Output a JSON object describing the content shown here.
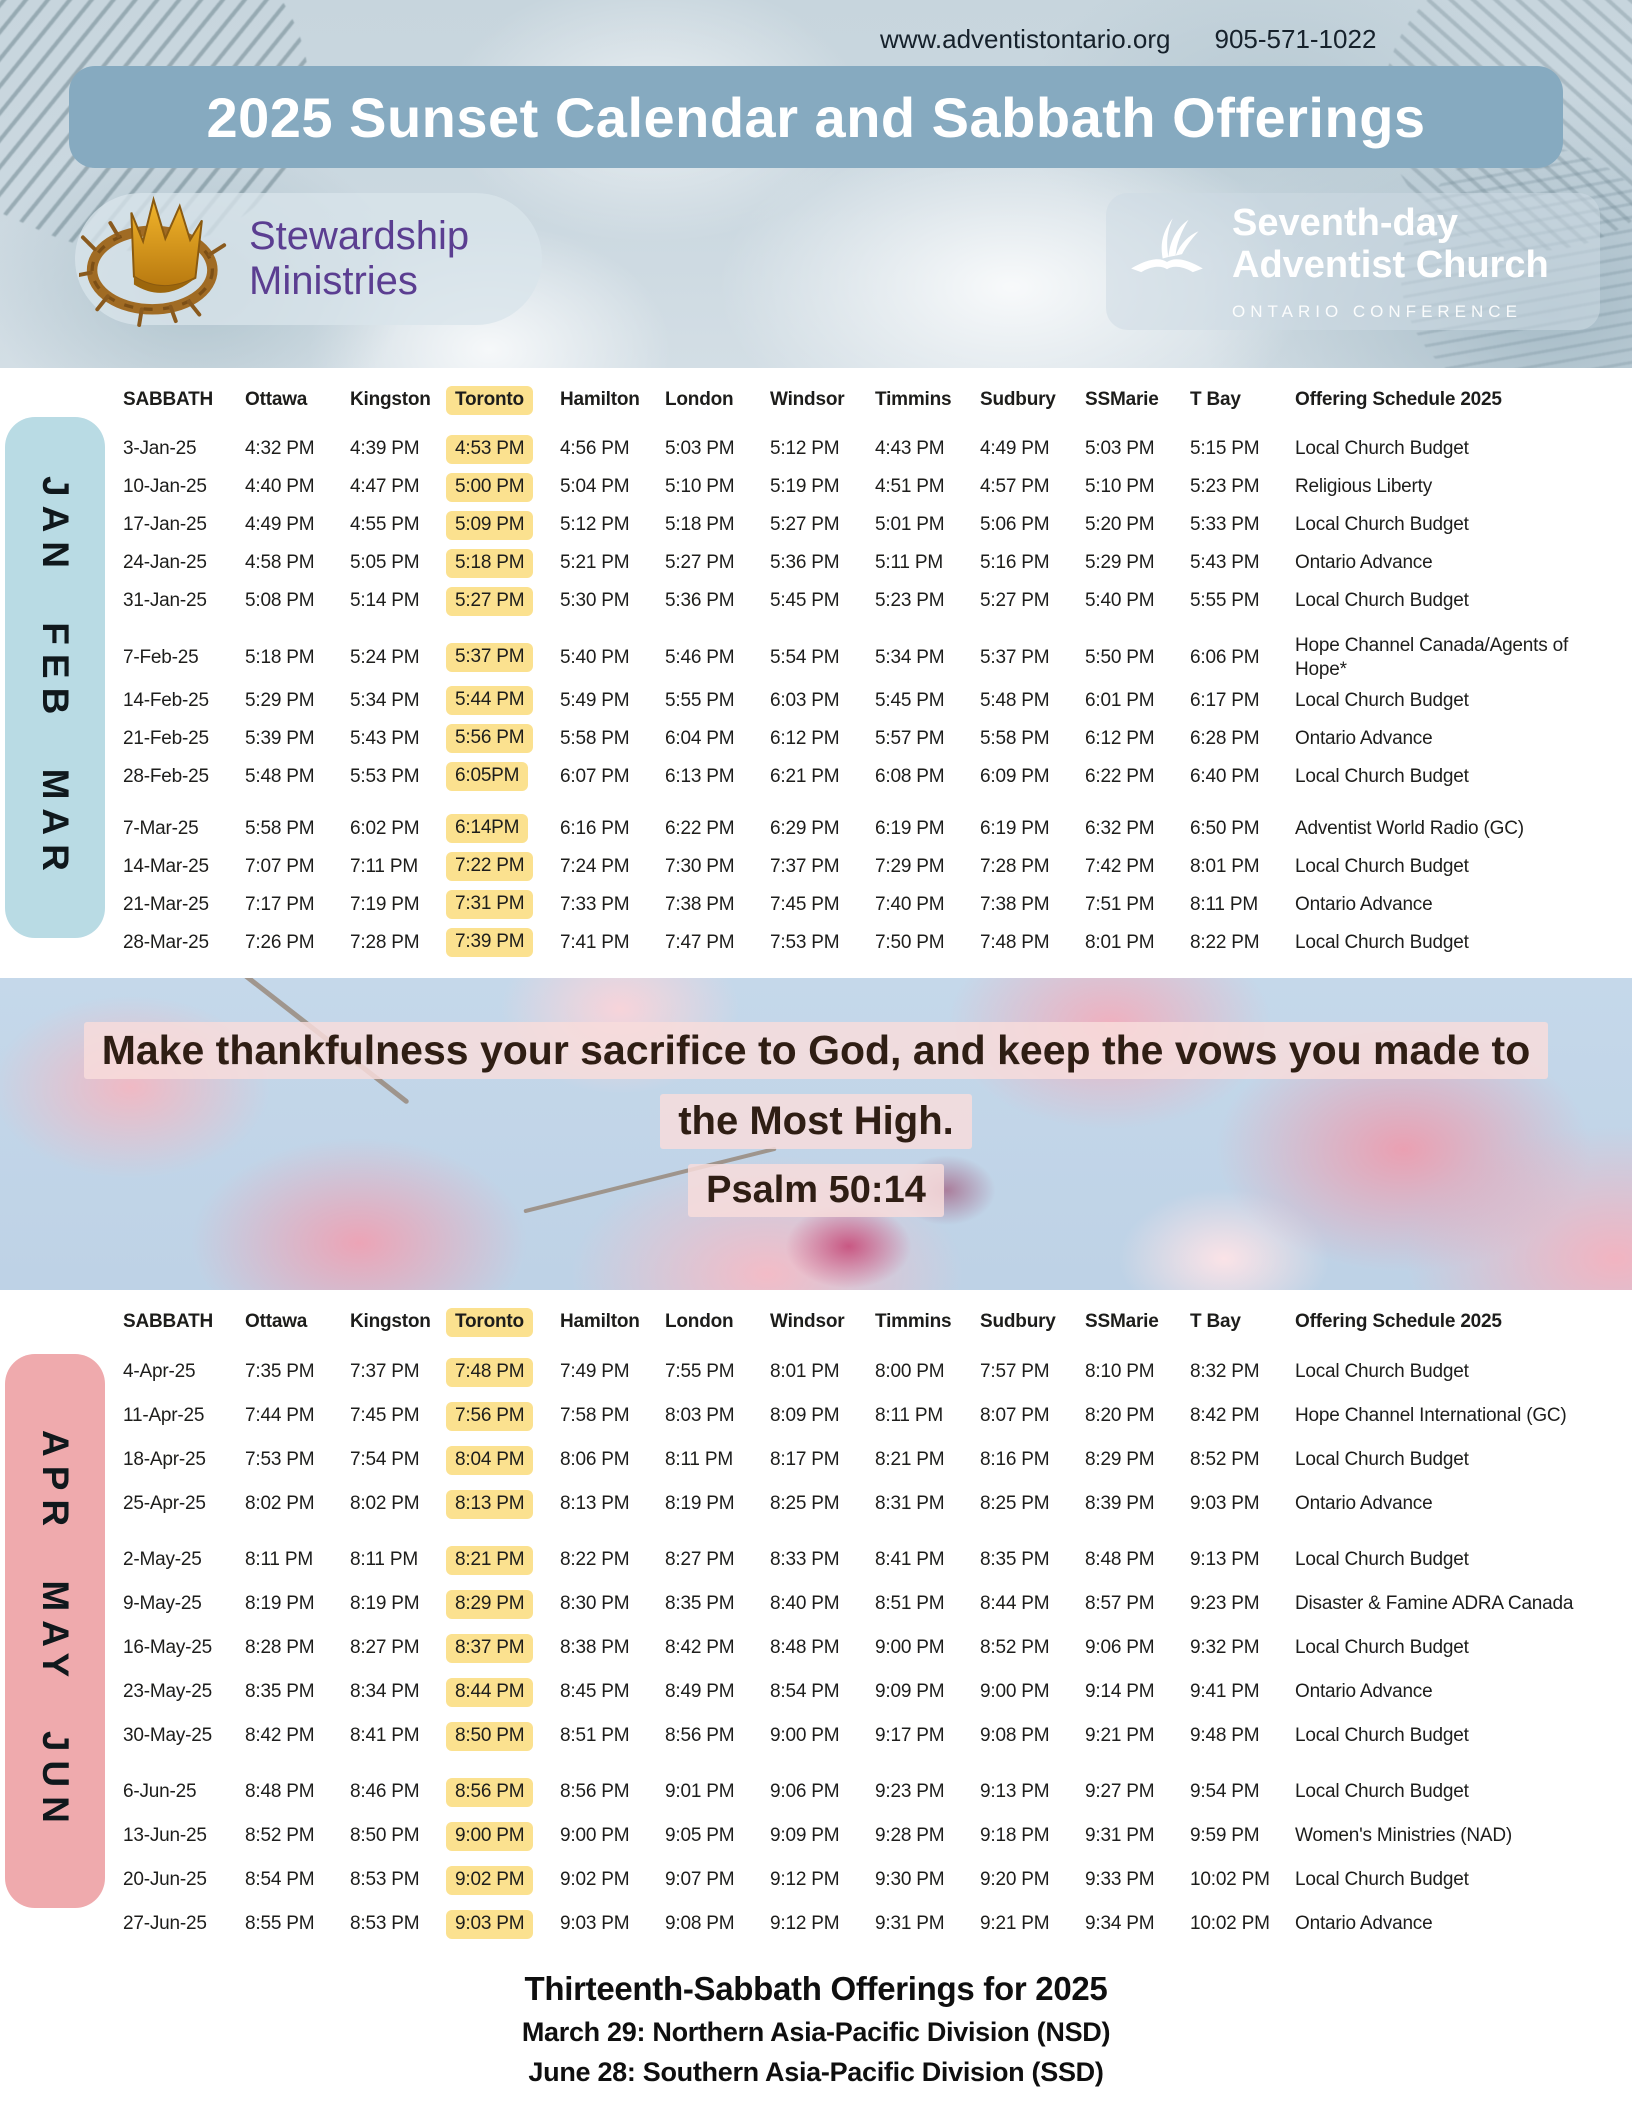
{
  "contact": {
    "website": "www.adventistontario.org",
    "phone": "905-571-1022"
  },
  "title": "2025 Sunset Calendar and Sabbath Offerings",
  "logos": {
    "stewardship": {
      "line1": "Stewardship",
      "line2": "Ministries"
    },
    "sda": {
      "line1": "Seventh-day",
      "line2": "Adventist Church",
      "conference": "ONTARIO CONFERENCE"
    }
  },
  "table": {
    "columns": [
      "SABBATH",
      "Ottawa",
      "Kingston",
      "Toronto",
      "Hamilton",
      "London",
      "Windsor",
      "Timmins",
      "Sudbury",
      "SSMarie",
      "T Bay",
      "Offering Schedule 2025"
    ],
    "highlighted_column": "Toronto"
  },
  "quarters": [
    {
      "id": "q1",
      "side_label": "JAN FEB MAR",
      "groups": [
        [
          [
            "3-Jan-25",
            "4:32 PM",
            "4:39 PM",
            "4:53 PM",
            "4:56 PM",
            "5:03 PM",
            "5:12 PM",
            "4:43 PM",
            "4:49 PM",
            "5:03 PM",
            "5:15 PM",
            "Local Church Budget"
          ],
          [
            "10-Jan-25",
            "4:40 PM",
            "4:47 PM",
            "5:00 PM",
            "5:04 PM",
            "5:10 PM",
            "5:19 PM",
            "4:51 PM",
            "4:57 PM",
            "5:10 PM",
            "5:23 PM",
            "Religious Liberty"
          ],
          [
            "17-Jan-25",
            "4:49 PM",
            "4:55 PM",
            "5:09 PM",
            "5:12 PM",
            "5:18 PM",
            "5:27 PM",
            "5:01 PM",
            "5:06 PM",
            "5:20 PM",
            "5:33 PM",
            "Local Church Budget"
          ],
          [
            "24-Jan-25",
            "4:58 PM",
            "5:05 PM",
            "5:18 PM",
            "5:21 PM",
            "5:27 PM",
            "5:36 PM",
            "5:11 PM",
            "5:16 PM",
            "5:29 PM",
            "5:43 PM",
            "Ontario Advance"
          ],
          [
            "31-Jan-25",
            "5:08 PM",
            "5:14 PM",
            "5:27 PM",
            "5:30 PM",
            "5:36 PM",
            "5:45 PM",
            "5:23 PM",
            "5:27 PM",
            "5:40 PM",
            "5:55 PM",
            "Local Church Budget"
          ]
        ],
        [
          [
            "7-Feb-25",
            "5:18 PM",
            "5:24 PM",
            "5:37 PM",
            "5:40 PM",
            "5:46 PM",
            "5:54 PM",
            "5:34 PM",
            "5:37 PM",
            "5:50 PM",
            "6:06 PM",
            "Hope Channel Canada/Agents of Hope*"
          ],
          [
            "14-Feb-25",
            "5:29 PM",
            "5:34 PM",
            "5:44 PM",
            "5:49 PM",
            "5:55 PM",
            "6:03 PM",
            "5:45 PM",
            "5:48 PM",
            "6:01 PM",
            "6:17 PM",
            "Local Church Budget"
          ],
          [
            "21-Feb-25",
            "5:39 PM",
            "5:43 PM",
            "5:56 PM",
            "5:58 PM",
            "6:04 PM",
            "6:12 PM",
            "5:57 PM",
            "5:58 PM",
            "6:12 PM",
            "6:28 PM",
            "Ontario Advance"
          ],
          [
            "28-Feb-25",
            "5:48 PM",
            "5:53 PM",
            "6:05PM",
            "6:07 PM",
            "6:13 PM",
            "6:21 PM",
            "6:08 PM",
            "6:09 PM",
            "6:22 PM",
            "6:40 PM",
            "Local Church Budget"
          ]
        ],
        [
          [
            "7-Mar-25",
            "5:58 PM",
            "6:02 PM",
            "6:14PM",
            "6:16 PM",
            "6:22 PM",
            "6:29 PM",
            "6:19 PM",
            "6:19 PM",
            "6:32 PM",
            "6:50 PM",
            "Adventist World Radio (GC)"
          ],
          [
            "14-Mar-25",
            "7:07 PM",
            "7:11 PM",
            "7:22 PM",
            "7:24 PM",
            "7:30 PM",
            "7:37 PM",
            "7:29 PM",
            "7:28 PM",
            "7:42 PM",
            "8:01 PM",
            "Local Church Budget"
          ],
          [
            "21-Mar-25",
            "7:17 PM",
            "7:19 PM",
            "7:31 PM",
            "7:33 PM",
            "7:38 PM",
            "7:45 PM",
            "7:40 PM",
            "7:38 PM",
            "7:51 PM",
            "8:11 PM",
            "Ontario Advance"
          ],
          [
            "28-Mar-25",
            "7:26 PM",
            "7:28 PM",
            "7:39 PM",
            "7:41 PM",
            "7:47 PM",
            "7:53 PM",
            "7:50 PM",
            "7:48 PM",
            "8:01 PM",
            "8:22 PM",
            "Local Church Budget"
          ]
        ]
      ]
    },
    {
      "id": "q2",
      "side_label": "APR MAY JUN",
      "groups": [
        [
          [
            "4-Apr-25",
            "7:35 PM",
            "7:37 PM",
            "7:48 PM",
            "7:49 PM",
            "7:55 PM",
            "8:01 PM",
            "8:00 PM",
            "7:57 PM",
            "8:10 PM",
            "8:32 PM",
            "Local Church Budget"
          ],
          [
            "11-Apr-25",
            "7:44 PM",
            "7:45 PM",
            "7:56 PM",
            "7:58 PM",
            "8:03 PM",
            "8:09 PM",
            "8:11 PM",
            "8:07 PM",
            "8:20 PM",
            "8:42 PM",
            "Hope Channel International (GC)"
          ],
          [
            "18-Apr-25",
            "7:53 PM",
            "7:54 PM",
            "8:04 PM",
            "8:06 PM",
            "8:11 PM",
            "8:17 PM",
            "8:21 PM",
            "8:16 PM",
            "8:29 PM",
            "8:52 PM",
            "Local Church Budget"
          ],
          [
            "25-Apr-25",
            "8:02 PM",
            "8:02 PM",
            "8:13 PM",
            "8:13 PM",
            "8:19 PM",
            "8:25 PM",
            "8:31 PM",
            "8:25 PM",
            "8:39 PM",
            "9:03 PM",
            "Ontario Advance"
          ]
        ],
        [
          [
            "2-May-25",
            "8:11 PM",
            "8:11 PM",
            "8:21 PM",
            "8:22 PM",
            "8:27 PM",
            "8:33 PM",
            "8:41 PM",
            "8:35 PM",
            "8:48 PM",
            "9:13 PM",
            "Local Church Budget"
          ],
          [
            "9-May-25",
            "8:19 PM",
            "8:19 PM",
            "8:29 PM",
            "8:30 PM",
            "8:35 PM",
            "8:40 PM",
            "8:51 PM",
            "8:44 PM",
            "8:57 PM",
            "9:23 PM",
            "Disaster & Famine ADRA Canada"
          ],
          [
            "16-May-25",
            "8:28 PM",
            "8:27 PM",
            "8:37 PM",
            "8:38 PM",
            "8:42 PM",
            "8:48 PM",
            "9:00 PM",
            "8:52 PM",
            "9:06 PM",
            "9:32 PM",
            "Local Church Budget"
          ],
          [
            "23-May-25",
            "8:35 PM",
            "8:34 PM",
            "8:44 PM",
            "8:45 PM",
            "8:49 PM",
            "8:54 PM",
            "9:09 PM",
            "9:00 PM",
            "9:14 PM",
            "9:41 PM",
            "Ontario Advance"
          ],
          [
            "30-May-25",
            "8:42 PM",
            "8:41 PM",
            "8:50 PM",
            "8:51 PM",
            "8:56 PM",
            "9:00 PM",
            "9:17 PM",
            "9:08 PM",
            "9:21 PM",
            "9:48 PM",
            "Local Church Budget"
          ]
        ],
        [
          [
            "6-Jun-25",
            "8:48 PM",
            "8:46 PM",
            "8:56 PM",
            "8:56 PM",
            "9:01 PM",
            "9:06 PM",
            "9:23 PM",
            "9:13 PM",
            "9:27 PM",
            "9:54 PM",
            "Local Church Budget"
          ],
          [
            "13-Jun-25",
            "8:52 PM",
            "8:50 PM",
            "9:00 PM",
            "9:00 PM",
            "9:05 PM",
            "9:09 PM",
            "9:28 PM",
            "9:18 PM",
            "9:31 PM",
            "9:59 PM",
            "Women's Ministries (NAD)"
          ],
          [
            "20-Jun-25",
            "8:54 PM",
            "8:53 PM",
            "9:02 PM",
            "9:02 PM",
            "9:07 PM",
            "9:12 PM",
            "9:30 PM",
            "9:20 PM",
            "9:33 PM",
            "10:02 PM",
            "Local Church Budget"
          ],
          [
            "27-Jun-25",
            "8:55 PM",
            "8:53 PM",
            "9:03 PM",
            "9:03 PM",
            "9:08 PM",
            "9:12 PM",
            "9:31 PM",
            "9:21 PM",
            "9:34 PM",
            "10:02 PM",
            "Ontario Advance"
          ]
        ]
      ]
    }
  ],
  "quote": {
    "line1": "Make thankfulness your sacrifice to God, and keep the vows you made to",
    "line2": "the Most High.",
    "reference": "Psalm 50:14"
  },
  "footer": {
    "title": "Thirteenth-Sabbath Offerings for 2025",
    "line1": "March 29: Northern Asia-Pacific Division (NSD)",
    "line2": "June 28: Southern Asia-Pacific Division (SSD)"
  },
  "colors": {
    "banner_blue": "#86aac0",
    "tab_blue": "#b9dbe4",
    "tab_pink": "#efaaad",
    "highlight_yellow": "#fbe18f",
    "quote_highlight": "#f7dbd9",
    "stewardship_purple": "#5b3e91"
  }
}
